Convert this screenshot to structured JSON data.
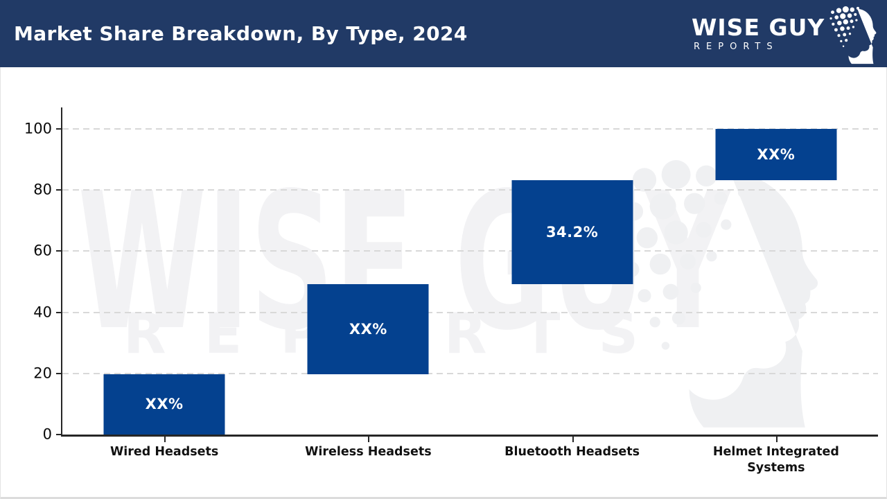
{
  "header": {
    "title": "Market Share Breakdown, By Type, 2024",
    "bg_color": "#213a66",
    "logo": {
      "line1": "WISE GUY",
      "line2": "REPORTS",
      "face_icon": "face-profile-dots"
    }
  },
  "watermark": {
    "line1": "WISE GUY",
    "line2": "REPORTS",
    "face_icon": "face-profile-dots"
  },
  "chart_data": {
    "type": "bar",
    "subtype": "waterfall",
    "title": "Market Share Breakdown, By Type, 2024",
    "xlabel": "",
    "ylabel": "",
    "categories": [
      "Wired Headsets",
      "Wireless Headsets",
      "Bluetooth Headsets",
      "Helmet Integrated Systems"
    ],
    "values": [
      19.8,
      29.3,
      34.2,
      16.6
    ],
    "segments": [
      {
        "category": "Wired Headsets",
        "start": 0,
        "end": 19.8,
        "label": "XX%"
      },
      {
        "category": "Wireless Headsets",
        "start": 19.8,
        "end": 49.1,
        "label": "XX%"
      },
      {
        "category": "Bluetooth Headsets",
        "start": 49.1,
        "end": 83.3,
        "label": "34.2%"
      },
      {
        "category": "Helmet Integrated Systems",
        "start": 83.3,
        "end": 99.9,
        "label": "XX%"
      }
    ],
    "yticks": [
      0,
      20,
      40,
      60,
      80,
      100
    ],
    "ylim": [
      0,
      107
    ],
    "grid": true,
    "legend": false,
    "bar_color": "#04418f",
    "bar_label_color": "#ffffff",
    "gridline_color": "#d8d8d8",
    "axis_color": "#262626"
  }
}
